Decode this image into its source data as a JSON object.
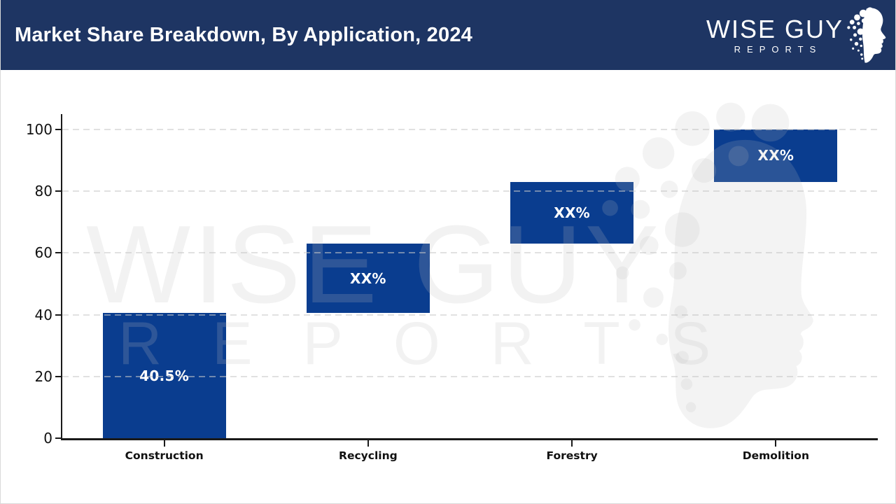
{
  "header": {
    "title": "Market Share Breakdown, By Application, 2024"
  },
  "logo": {
    "name": "WISE GUY",
    "subtitle": "REPORTS"
  },
  "watermark": {
    "line1": "WISE GUY",
    "line2": "REPORTS"
  },
  "colors": {
    "header_bg": "#1e3563",
    "bar": "#0a3d8f",
    "axis": "#1a1a1a",
    "grid_dash": "#dcdcdc",
    "bar_label": "#ffffff",
    "tick_label": "#111111"
  },
  "chart_data": {
    "type": "bar",
    "subtype": "waterfall",
    "title": "Market Share Breakdown, By Application, 2024",
    "categories": [
      "Construction",
      "Recycling",
      "Forestry",
      "Demolition"
    ],
    "segments": [
      {
        "category": "Construction",
        "start": 0,
        "end": 40.5,
        "label": "40.5%"
      },
      {
        "category": "Recycling",
        "start": 40.5,
        "end": 63,
        "label": "XX%"
      },
      {
        "category": "Forestry",
        "start": 63,
        "end": 83,
        "label": "XX%"
      },
      {
        "category": "Demolition",
        "start": 83,
        "end": 100,
        "label": "XX%"
      }
    ],
    "xlabel": "",
    "ylabel": "",
    "ylim": [
      0,
      100
    ],
    "yticks": [
      0,
      20,
      40,
      60,
      80,
      100
    ],
    "grid": "horizontal-dashed",
    "legend": "none"
  }
}
